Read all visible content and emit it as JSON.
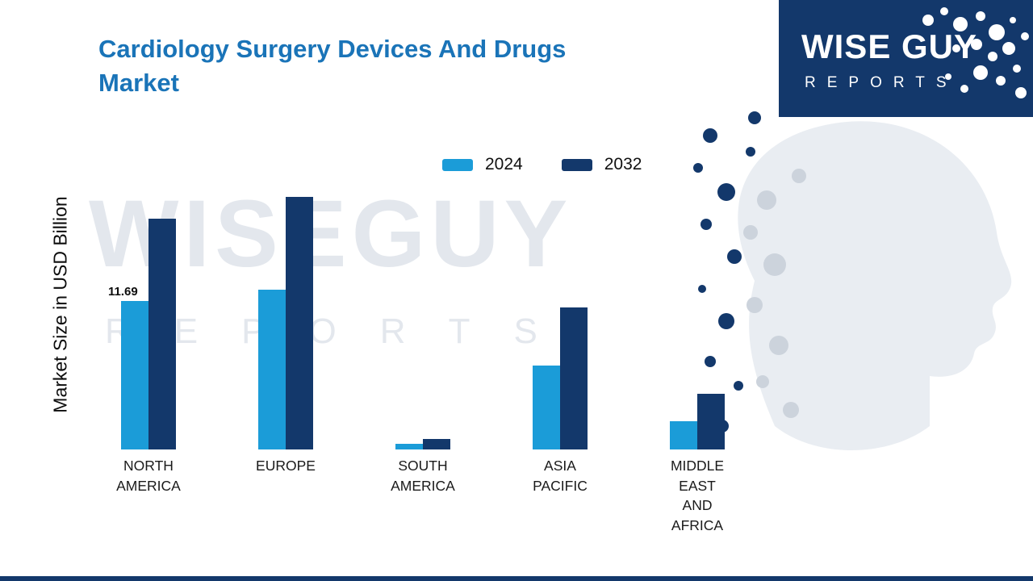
{
  "page": {
    "title": "Cardiology Surgery Devices And Drugs Market",
    "title_color": "#1a74b8",
    "brand_navy": "#13386b",
    "brand_light_blue": "#1b9cd8"
  },
  "logo": {
    "line1": "WISE GUY",
    "line2": "REPORTS"
  },
  "watermark": {
    "line1": "WISEGUY",
    "line2": "REPORTS"
  },
  "chart_data": {
    "type": "bar",
    "title": "Cardiology Surgery Devices And Drugs Market",
    "ylabel": "Market Size in USD Billion",
    "xlabel": "",
    "categories": [
      "NORTH AMERICA",
      "EUROPE",
      "SOUTH AMERICA",
      "ASIA PACIFIC",
      "MIDDLE EAST AND AFRICA"
    ],
    "series": [
      {
        "name": "2024",
        "color": "#1b9cd8",
        "values": [
          11.69,
          12.6,
          0.45,
          6.6,
          2.2
        ]
      },
      {
        "name": "2032",
        "color": "#13386b",
        "values": [
          18.2,
          19.9,
          0.85,
          11.2,
          4.4
        ]
      }
    ],
    "annotations": [
      {
        "text": "11.69",
        "series_index": 0,
        "category_index": 0
      }
    ],
    "ylim": [
      0,
      21
    ],
    "grid": false,
    "legend_position": "top"
  }
}
